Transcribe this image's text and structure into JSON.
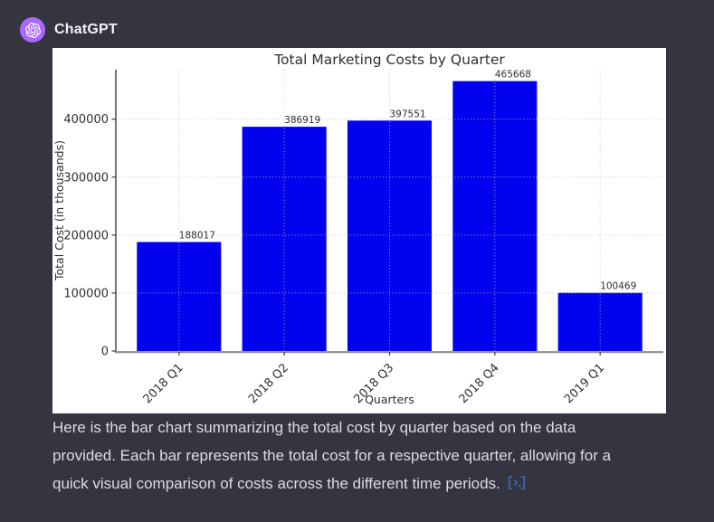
{
  "app": {
    "name": "ChatGPT"
  },
  "colors": {
    "background": "#343541",
    "panel": "#ffffff",
    "avatar_purple": "#ab68ff",
    "body_text": "#d9dce4",
    "citation_blue": "#4067a8",
    "bar_blue": "#0202ef"
  },
  "chart_data": {
    "type": "bar",
    "title": "Total Marketing Costs by Quarter",
    "categories": [
      "2018 Q1",
      "2018 Q2",
      "2018 Q3",
      "2018 Q4",
      "2019 Q1"
    ],
    "values": [
      188017,
      386919,
      397551,
      465668,
      100469
    ],
    "bar_value_labels": [
      "188017",
      "386919",
      "397551",
      "465668",
      "100469"
    ],
    "xlabel": "Quarters",
    "ylabel": "Total Cost (in thousands)",
    "ylim": [
      0,
      485400
    ],
    "yticks": [
      0,
      100000,
      200000,
      300000,
      400000
    ],
    "grid": "dotted, both axes, drawn over bars",
    "legend": "none",
    "bar_color": "#0202ef",
    "x_tick_rotation": 45
  },
  "message": {
    "text": "Here is the bar chart summarizing the total cost by quarter based on the data provided. Each bar represents the total cost for a respective quarter, allowing for a quick visual comparison of costs across the different time periods.",
    "citation_icon": "code-interpreter-citation"
  }
}
